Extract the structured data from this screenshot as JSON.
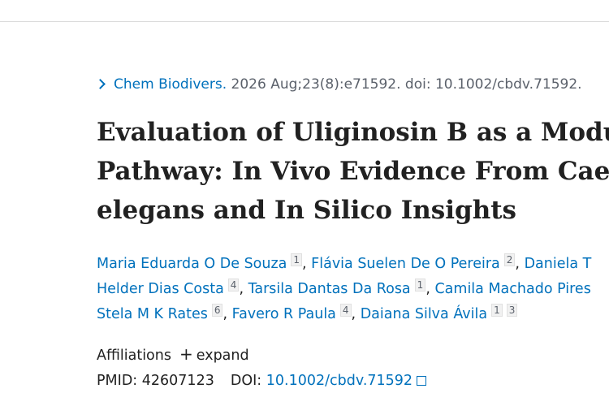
{
  "citation": {
    "journal": "Chem Biodivers.",
    "details": "2026 Aug;23(8):e71592. doi: 10.1002/cbdv.71592."
  },
  "title_lines": [
    "Evaluation of Uliginosin B as a Modu",
    "Pathway: In Vivo Evidence From Cae",
    "elegans and In Silico Insights"
  ],
  "author_rows": [
    [
      {
        "name": "Maria Eduarda O De Souza",
        "refs": [
          "1"
        ]
      },
      {
        "name": "Flávia Suelen De O Pereira",
        "refs": [
          "2"
        ]
      },
      {
        "name": "Daniela T",
        "refs": []
      }
    ],
    [
      {
        "name": "Helder Dias Costa",
        "refs": [
          "4"
        ]
      },
      {
        "name": "Tarsila Dantas Da Rosa",
        "refs": [
          "1"
        ]
      },
      {
        "name": "Camila Machado Pires",
        "refs": []
      }
    ],
    [
      {
        "name": "Stela M K Rates",
        "refs": [
          "6"
        ]
      },
      {
        "name": "Favero R Paula",
        "refs": [
          "4"
        ]
      },
      {
        "name": "Daiana Silva Ávila",
        "refs": [
          "1",
          "3"
        ]
      }
    ]
  ],
  "affiliations": {
    "label": "Affiliations",
    "toggle": "+",
    "action": "expand"
  },
  "identifiers": {
    "pmid_label": "PMID:",
    "pmid": "42607123",
    "doi_label": "DOI:",
    "doi": "10.1002/cbdv.71592"
  }
}
